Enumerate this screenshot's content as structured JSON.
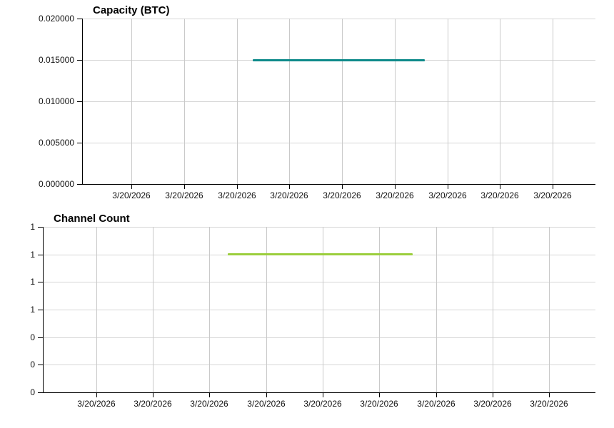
{
  "page": {
    "background": "#ffffff"
  },
  "chart_data": [
    {
      "type": "line",
      "title": "Capacity (BTC)",
      "xlabel": "",
      "ylabel": "Capacity (BTC)",
      "ylim": [
        0,
        0.02
      ],
      "grid": true,
      "legend": "none",
      "y_tick_labels": [
        "0.020000",
        "0.015000",
        "0.010000",
        "0.005000",
        "0.000000"
      ],
      "x_tick_labels": [
        "3/20/2026",
        "3/20/2026",
        "3/20/2026",
        "3/20/2026",
        "3/20/2026",
        "3/20/2026",
        "3/20/2026",
        "3/20/2026",
        "3/20/2026"
      ],
      "series": [
        {
          "name": "capacity",
          "color": "#0d8a8a",
          "value": 0.015,
          "start_frac": 0.333,
          "end_frac": 0.668,
          "description": "constant horizontal line at 0.015 BTC spanning middle third of date range on 3/20/2026"
        }
      ]
    },
    {
      "type": "line",
      "title": "Channel Count",
      "xlabel": "",
      "ylabel": "Channel Count",
      "ylim": [
        0,
        1.2
      ],
      "grid": true,
      "legend": "none",
      "y_tick_labels": [
        "1",
        "1",
        "1",
        "1",
        "0",
        "0",
        "0"
      ],
      "x_tick_labels": [
        "3/20/2026",
        "3/20/2026",
        "3/20/2026",
        "3/20/2026",
        "3/20/2026",
        "3/20/2026",
        "3/20/2026",
        "3/20/2026",
        "3/20/2026"
      ],
      "series": [
        {
          "name": "channel-count",
          "color": "#9bce3c",
          "value": 1,
          "start_frac": 0.334,
          "end_frac": 0.668,
          "description": "constant horizontal line at 1 channel spanning middle third of date range on 3/20/2026"
        }
      ]
    }
  ]
}
